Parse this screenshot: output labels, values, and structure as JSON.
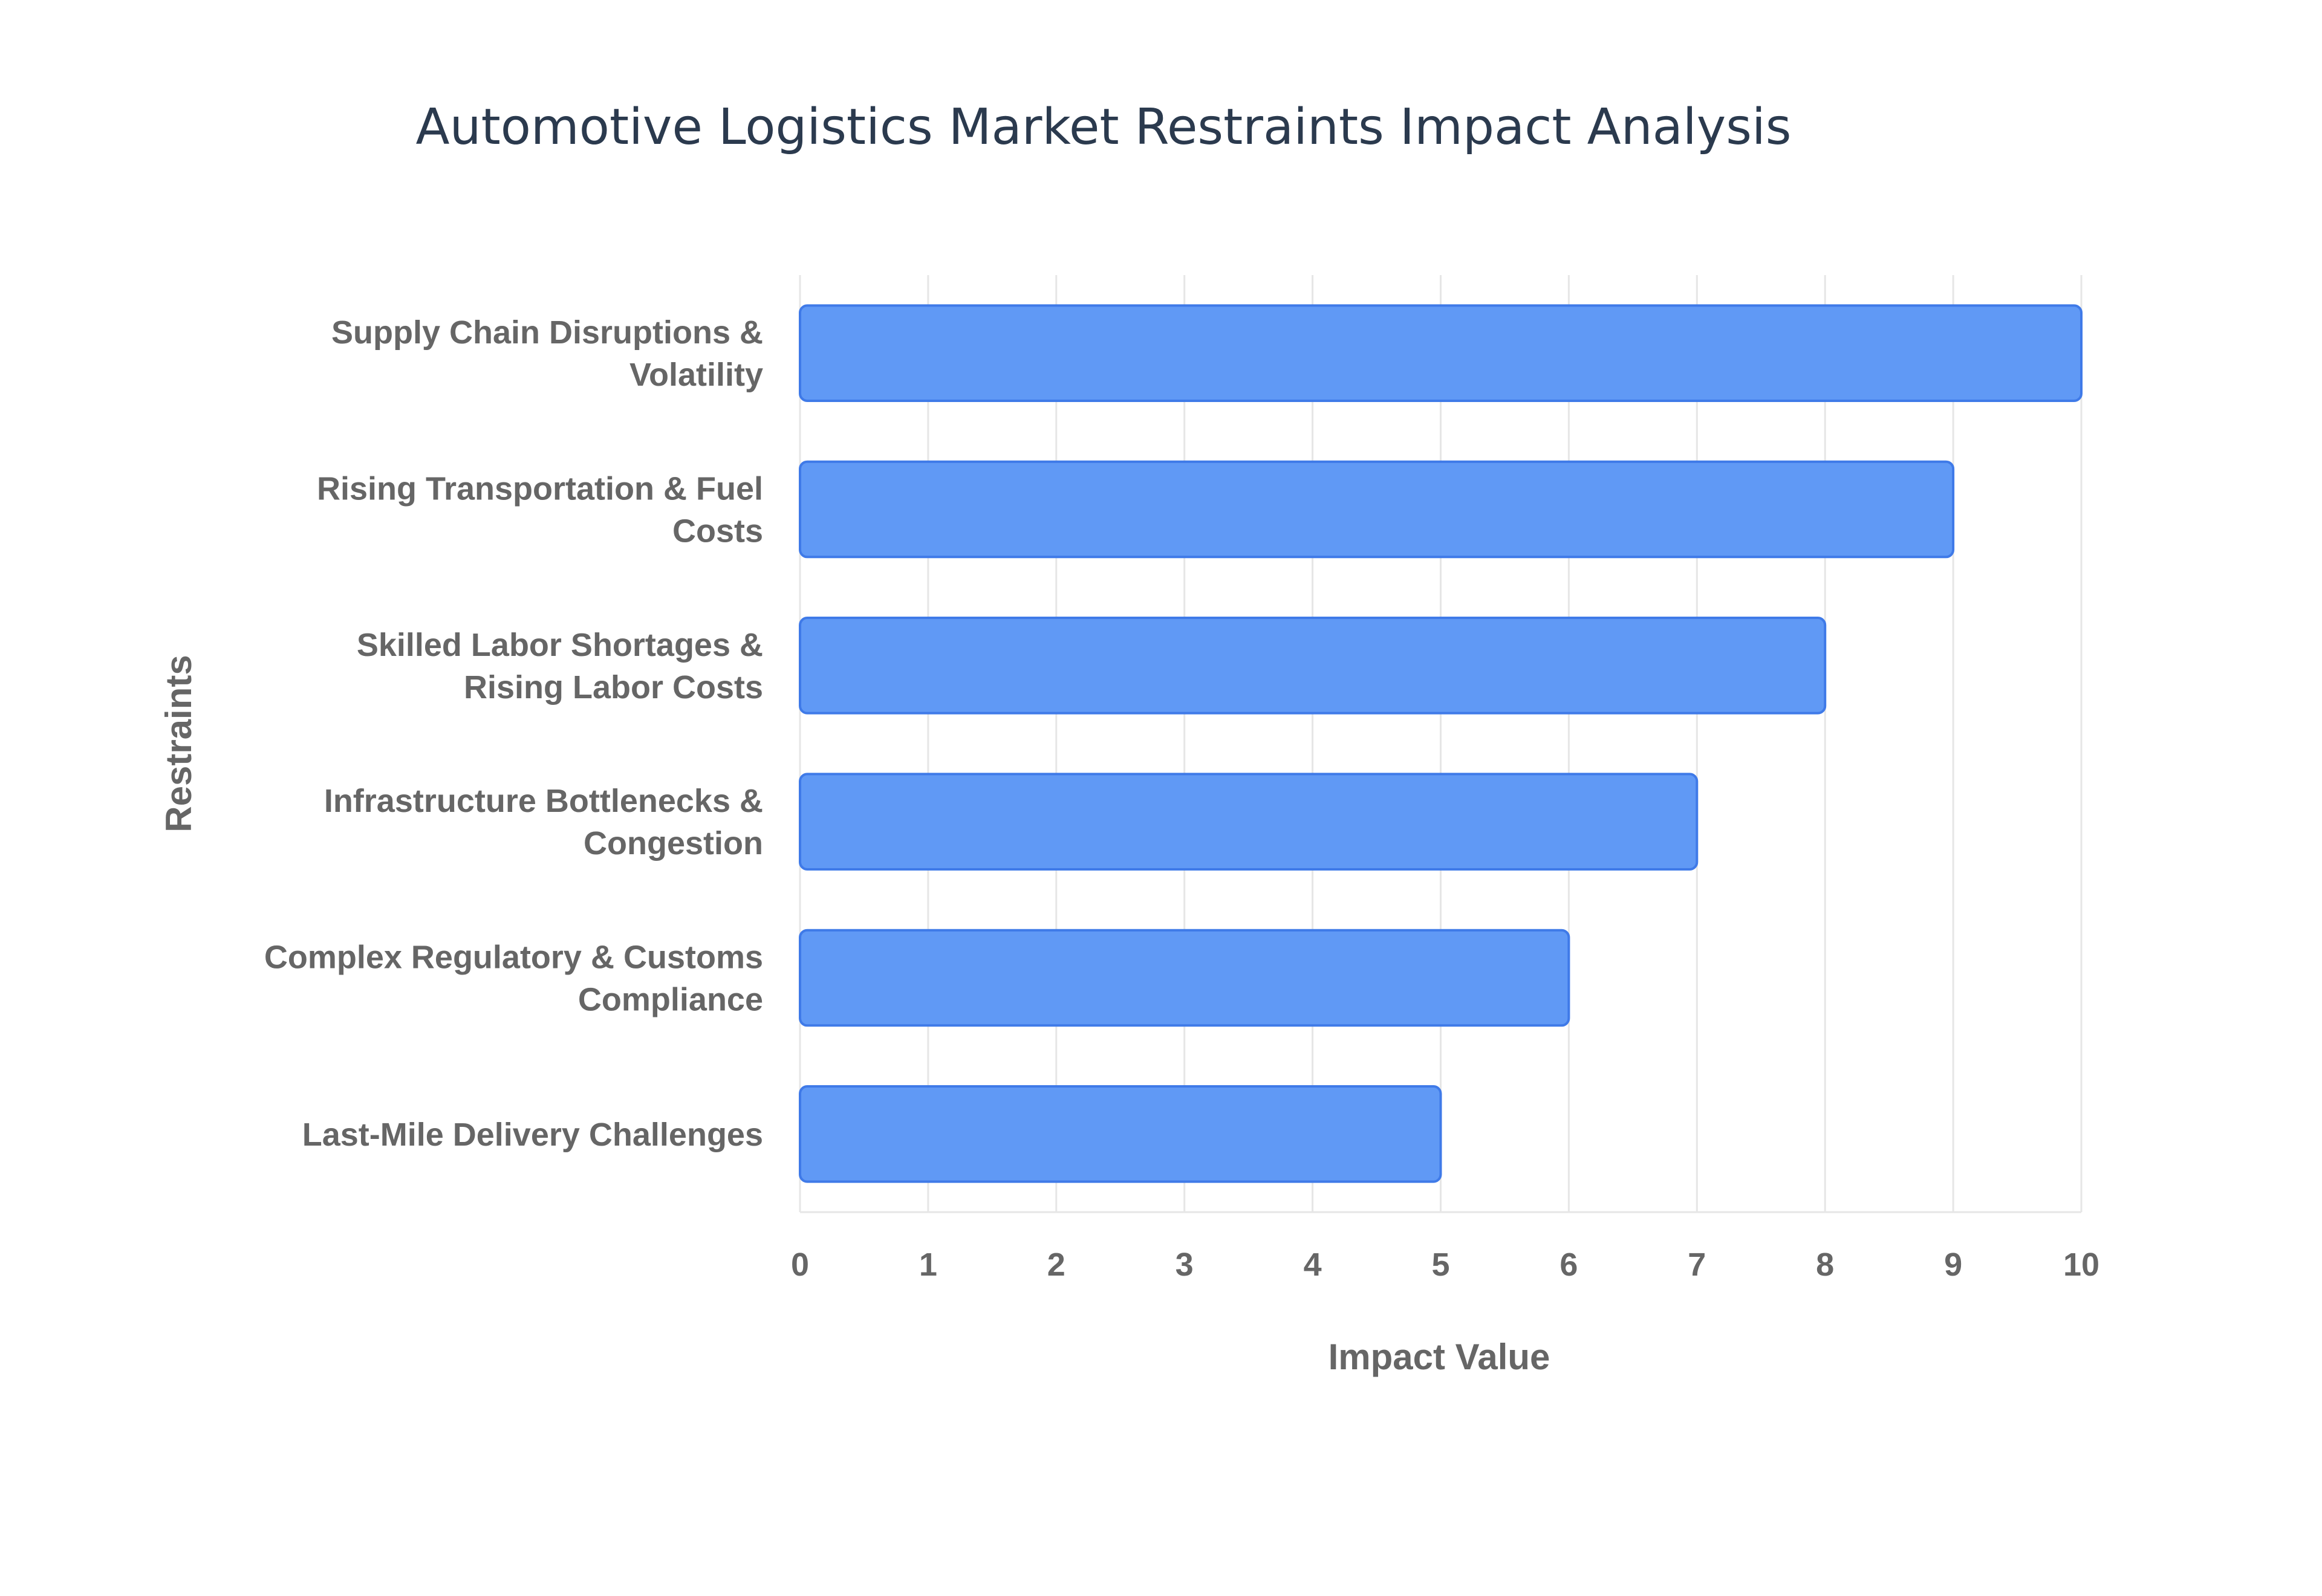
{
  "chart_data": {
    "type": "bar",
    "orientation": "horizontal",
    "title": "Automotive Logistics Market Restraints Impact Analysis",
    "xlabel": "Impact Value",
    "ylabel": "Restraints",
    "categories": [
      [
        "Supply Chain Disruptions &",
        "Volatility"
      ],
      [
        "Rising Transportation & Fuel",
        "Costs"
      ],
      [
        "Skilled Labor Shortages &",
        "Rising Labor Costs"
      ],
      [
        "Infrastructure Bottlenecks &",
        "Congestion"
      ],
      [
        "Complex Regulatory & Customs",
        "Compliance"
      ],
      [
        "Last-Mile Delivery Challenges"
      ]
    ],
    "values": [
      10,
      9,
      8,
      7,
      6,
      5
    ],
    "xlim": [
      0,
      10
    ],
    "xticks": [
      "0",
      "1",
      "2",
      "3",
      "4",
      "5",
      "6",
      "7",
      "8",
      "9",
      "10"
    ],
    "grid": true,
    "legend": "none",
    "colors": {
      "bar_fill": "#6099f5",
      "bar_stroke": "#3f7ae8",
      "title": "#2b3a4e",
      "labels": "#666666",
      "grid": "#e6e6e6"
    }
  }
}
